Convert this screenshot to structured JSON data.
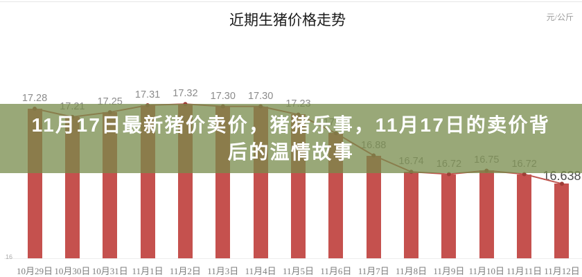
{
  "chart": {
    "title": "近期生猪价格走势",
    "unit": "元/公斤",
    "y_min_label": "16"
  },
  "overlay": {
    "line1": "11月17日最新猪价卖价，猪猪乐事，11月17日的卖价背",
    "line2": "后的温情故事",
    "full_title": "11月17日最新猪价卖价，猪猪乐事，11月17日的卖价背后的温情故事"
  },
  "chart_data": {
    "type": "bar",
    "title": "近期生猪价格走势",
    "ylabel": "元/公斤",
    "categories": [
      "10月29日",
      "10月30日",
      "10月31日",
      "11月1日",
      "11月2日",
      "11月3日",
      "11月4日",
      "11月5日",
      "11月6日",
      "11月7日",
      "11月8日",
      "11月9日",
      "11月10日",
      "11月11日",
      "11月12日"
    ],
    "values": [
      17.28,
      17.21,
      17.25,
      17.31,
      17.32,
      17.3,
      17.3,
      17.23,
      17.07,
      16.88,
      16.74,
      16.72,
      16.75,
      16.72,
      16.638
    ],
    "labels": [
      "17.28",
      "17.21",
      "17.25",
      "17.31",
      "17.32",
      "17.30",
      "17.30",
      "17.23",
      "17.07",
      "16.88",
      "16.74",
      "16.72",
      "16.75",
      "16.72",
      "16.638"
    ],
    "ylim": [
      16,
      18
    ],
    "grid": false,
    "legend": false,
    "bar_color": "#c5514e",
    "line_color": "#c0564f",
    "marker_color": "#9e3d37",
    "band_color": "rgba(119,139,75,0.75)"
  }
}
